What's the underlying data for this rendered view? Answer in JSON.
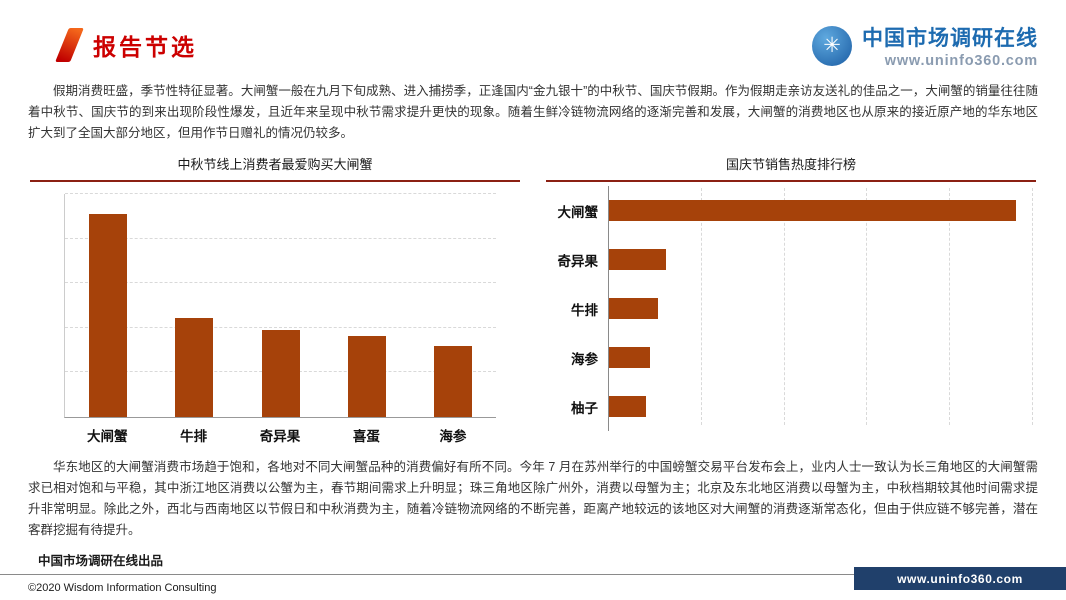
{
  "header": {
    "page_title": "报告节选",
    "brand": {
      "name": "中国市场调研在线",
      "url": "www.uninfo360.com",
      "icon_glyph": "✳"
    }
  },
  "paragraphs": {
    "intro": "假期消费旺盛，季节性特征显著。大闸蟹一般在九月下旬成熟、进入捕捞季，正逢国内“金九银十”的中秋节、国庆节假期。作为假期走亲访友送礼的佳品之一，大闸蟹的销量往往随着中秋节、国庆节的到来出现阶段性爆发，且近年来呈现中秋节需求提升更快的现象。随着生鲜冷链物流网络的逐渐完善和发展，大闸蟹的消费地区也从原来的接近原产地的华东地区扩大到了全国大部分地区，但用作节日赠礼的情况仍较多。",
    "analysis": "华东地区的大闸蟹消费市场趋于饱和，各地对不同大闸蟹品种的消费偏好有所不同。今年 7 月在苏州举行的中国螃蟹交易平台发布会上，业内人士一致认为长三角地区的大闸蟹需求已相对饱和与平稳，其中浙江地区消费以公蟹为主，春节期间需求上升明显；珠三角地区除广州外，消费以母蟹为主；北京及东北地区消费以母蟹为主，中秋档期较其他时间需求提升非常明显。除此之外，西北与西南地区以节假日和中秋消费为主，随着冷链物流网络的不断完善，距离产地较远的该地区对大闸蟹的消费逐渐常态化，但由于供应链不够完善，潜在客群挖掘有待提升。"
  },
  "chart_data": [
    {
      "type": "bar",
      "title": "中秋节线上消费者最爱购买大闸蟹",
      "categories": [
        "大闸蟹",
        "牛排",
        "奇异果",
        "喜蛋",
        "海参"
      ],
      "values": [
        100,
        49,
        43,
        40,
        35
      ],
      "xlabel": "",
      "ylabel": "",
      "ylim": [
        0,
        110
      ],
      "grid": "horizontal-dashed",
      "legend": "none",
      "bar_color": "#A6420A"
    },
    {
      "type": "bar-horizontal",
      "title": "国庆节销售热度排行榜",
      "categories": [
        "大闸蟹",
        "奇异果",
        "牛排",
        "海参",
        "柚子"
      ],
      "values": [
        100,
        14,
        12,
        10,
        9
      ],
      "xlabel": "",
      "ylabel": "",
      "xlim": [
        0,
        105
      ],
      "grid": "vertical-dashed",
      "legend": "none",
      "bar_color": "#A6420A"
    }
  ],
  "footer": {
    "producer": "中国市场调研在线出品",
    "copyright": "©2020 Wisdom Information Consulting",
    "site_url": "www.uninfo360.com"
  },
  "colors": {
    "accent_red": "#CC0000",
    "bar": "#A6420A",
    "title_rule": "#8B2013",
    "brand_blue": "#1D6BB0",
    "footer_bar_bg": "#20406B"
  }
}
